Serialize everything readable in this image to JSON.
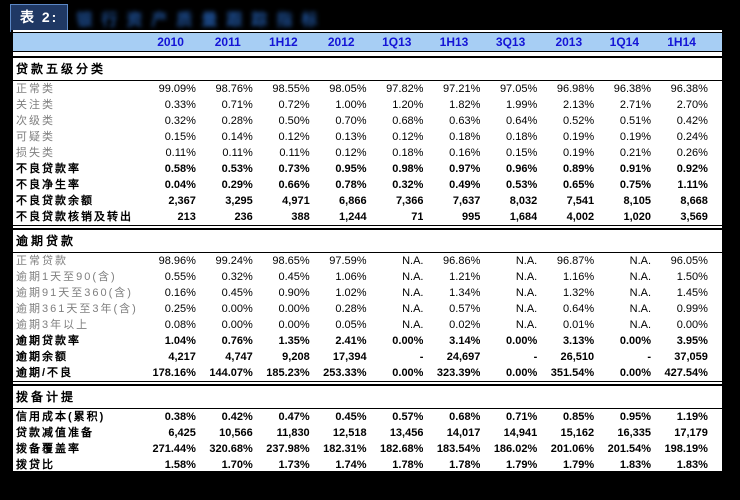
{
  "title": {
    "prefix": "表 2:",
    "blurred_text": "银行资产质量跟踪指标",
    "note": "title text is blurred/illegible in source image"
  },
  "colors": {
    "background": "#000000",
    "sheet": "#FFFFFF",
    "header_bar": "#A7CEF4",
    "header_text": "#1414D6",
    "title_box": "#1F3864",
    "muted_label": "#7F7F7F"
  },
  "table": {
    "columns": [
      "2010",
      "2011",
      "1H12",
      "2012",
      "1Q13",
      "1H13",
      "3Q13",
      "2013",
      "1Q14",
      "1H14"
    ],
    "sections": [
      {
        "title": "贷款五级分类",
        "rows": [
          {
            "label": "正常类",
            "bold": false,
            "values": [
              "99.09%",
              "98.76%",
              "98.55%",
              "98.05%",
              "97.82%",
              "97.21%",
              "97.05%",
              "96.98%",
              "96.38%",
              "96.38%"
            ]
          },
          {
            "label": "关注类",
            "bold": false,
            "values": [
              "0.33%",
              "0.71%",
              "0.72%",
              "1.00%",
              "1.20%",
              "1.82%",
              "1.99%",
              "2.13%",
              "2.71%",
              "2.70%"
            ]
          },
          {
            "label": "次级类",
            "bold": false,
            "values": [
              "0.32%",
              "0.28%",
              "0.50%",
              "0.70%",
              "0.68%",
              "0.63%",
              "0.64%",
              "0.52%",
              "0.51%",
              "0.42%"
            ]
          },
          {
            "label": "可疑类",
            "bold": false,
            "values": [
              "0.15%",
              "0.14%",
              "0.12%",
              "0.13%",
              "0.12%",
              "0.18%",
              "0.18%",
              "0.19%",
              "0.19%",
              "0.24%"
            ]
          },
          {
            "label": "损失类",
            "bold": false,
            "values": [
              "0.11%",
              "0.11%",
              "0.11%",
              "0.12%",
              "0.18%",
              "0.16%",
              "0.15%",
              "0.19%",
              "0.21%",
              "0.26%"
            ]
          },
          {
            "label": "不良贷款率",
            "bold": true,
            "values": [
              "0.58%",
              "0.53%",
              "0.73%",
              "0.95%",
              "0.98%",
              "0.97%",
              "0.96%",
              "0.89%",
              "0.91%",
              "0.92%"
            ]
          },
          {
            "label": "不良净生率",
            "bold": true,
            "values": [
              "0.04%",
              "0.29%",
              "0.66%",
              "0.78%",
              "0.32%",
              "0.49%",
              "0.53%",
              "0.65%",
              "0.75%",
              "1.11%"
            ]
          },
          {
            "label": "不良贷款余额",
            "bold": true,
            "values": [
              "2,367",
              "3,295",
              "4,971",
              "6,866",
              "7,366",
              "7,637",
              "8,032",
              "7,541",
              "8,105",
              "8,668"
            ]
          },
          {
            "label": "不良贷款核销及转出",
            "bold": true,
            "values": [
              "213",
              "236",
              "388",
              "1,244",
              "71",
              "995",
              "1,684",
              "4,002",
              "1,020",
              "3,569"
            ]
          }
        ]
      },
      {
        "title": "逾期贷款",
        "rows": [
          {
            "label": "正常贷款",
            "bold": false,
            "values": [
              "98.96%",
              "99.24%",
              "98.65%",
              "97.59%",
              "N.A.",
              "96.86%",
              "N.A.",
              "96.87%",
              "N.A.",
              "96.05%"
            ]
          },
          {
            "label": "逾期1天至90(含)",
            "bold": false,
            "values": [
              "0.55%",
              "0.32%",
              "0.45%",
              "1.06%",
              "N.A.",
              "1.21%",
              "N.A.",
              "1.16%",
              "N.A.",
              "1.50%"
            ]
          },
          {
            "label": "逾期91天至360(含)",
            "bold": false,
            "values": [
              "0.16%",
              "0.45%",
              "0.90%",
              "1.02%",
              "N.A.",
              "1.34%",
              "N.A.",
              "1.32%",
              "N.A.",
              "1.45%"
            ]
          },
          {
            "label": "逾期361天至3年(含)",
            "bold": false,
            "values": [
              "0.25%",
              "0.00%",
              "0.00%",
              "0.28%",
              "N.A.",
              "0.57%",
              "N.A.",
              "0.64%",
              "N.A.",
              "0.99%"
            ]
          },
          {
            "label": "逾期3年以上",
            "bold": false,
            "values": [
              "0.08%",
              "0.00%",
              "0.00%",
              "0.05%",
              "N.A.",
              "0.02%",
              "N.A.",
              "0.01%",
              "N.A.",
              "0.00%"
            ]
          },
          {
            "label": "逾期贷款率",
            "bold": true,
            "values": [
              "1.04%",
              "0.76%",
              "1.35%",
              "2.41%",
              "0.00%",
              "3.14%",
              "0.00%",
              "3.13%",
              "0.00%",
              "3.95%"
            ]
          },
          {
            "label": "逾期余额",
            "bold": true,
            "values": [
              "4,217",
              "4,747",
              "9,208",
              "17,394",
              "-",
              "24,697",
              "-",
              "26,510",
              "-",
              "37,059"
            ]
          },
          {
            "label": "逾期/不良",
            "bold": true,
            "values": [
              "178.16%",
              "144.07%",
              "185.23%",
              "253.33%",
              "0.00%",
              "323.39%",
              "0.00%",
              "351.54%",
              "0.00%",
              "427.54%"
            ]
          }
        ]
      },
      {
        "title": "拨备计提",
        "rows": [
          {
            "label": "信用成本(累积)",
            "bold": true,
            "values": [
              "0.38%",
              "0.42%",
              "0.47%",
              "0.45%",
              "0.57%",
              "0.68%",
              "0.71%",
              "0.85%",
              "0.95%",
              "1.19%"
            ]
          },
          {
            "label": "贷款减值准备",
            "bold": true,
            "values": [
              "6,425",
              "10,566",
              "11,830",
              "12,518",
              "13,456",
              "14,017",
              "14,941",
              "15,162",
              "16,335",
              "17,179"
            ]
          },
          {
            "label": "拨备覆盖率",
            "bold": true,
            "values": [
              "271.44%",
              "320.68%",
              "237.98%",
              "182.31%",
              "182.68%",
              "183.54%",
              "186.02%",
              "201.06%",
              "201.54%",
              "198.19%"
            ]
          },
          {
            "label": "拨贷比",
            "bold": true,
            "values": [
              "1.58%",
              "1.70%",
              "1.73%",
              "1.74%",
              "1.78%",
              "1.78%",
              "1.79%",
              "1.79%",
              "1.83%",
              "1.83%"
            ]
          }
        ]
      }
    ]
  }
}
